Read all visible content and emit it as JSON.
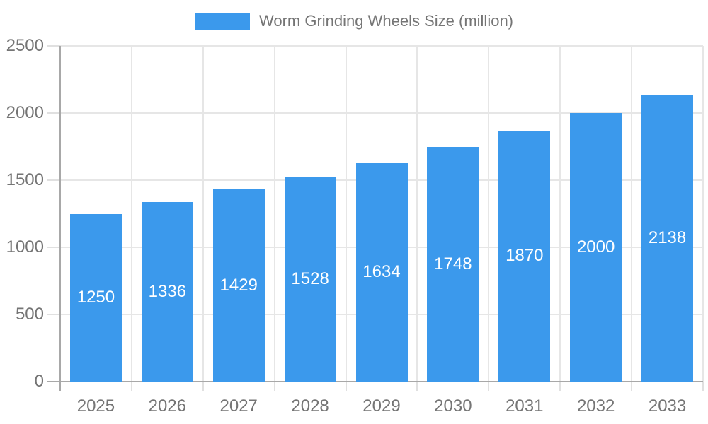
{
  "chart_data": {
    "type": "bar",
    "title": "Worm Grinding Wheels Size (million)",
    "categories": [
      "2025",
      "2026",
      "2027",
      "2028",
      "2029",
      "2030",
      "2031",
      "2032",
      "2033"
    ],
    "values": [
      1250,
      1336,
      1429,
      1528,
      1634,
      1748,
      1870,
      2000,
      2138
    ],
    "series": [
      {
        "name": "Worm Grinding Wheels Size (million)",
        "values": [
          1250,
          1336,
          1429,
          1528,
          1634,
          1748,
          1870,
          2000,
          2138
        ]
      }
    ],
    "xlabel": "",
    "ylabel": "",
    "ylim": [
      0,
      2500
    ],
    "yticks": [
      0,
      500,
      1000,
      1500,
      2000,
      2500
    ],
    "grid": true,
    "legend_position": "top-center",
    "value_labels": "inside-center-white"
  },
  "legend": {
    "label": "Worm Grinding Wheels Size (million)"
  },
  "colors": {
    "bar": "#3B99EC",
    "axis": "#a8a8a8",
    "grid": "#e6e6e6",
    "minor_tick": "#e0e0e0",
    "axis_text": "#757575",
    "value_text": "#ffffff",
    "background": "#ffffff"
  }
}
